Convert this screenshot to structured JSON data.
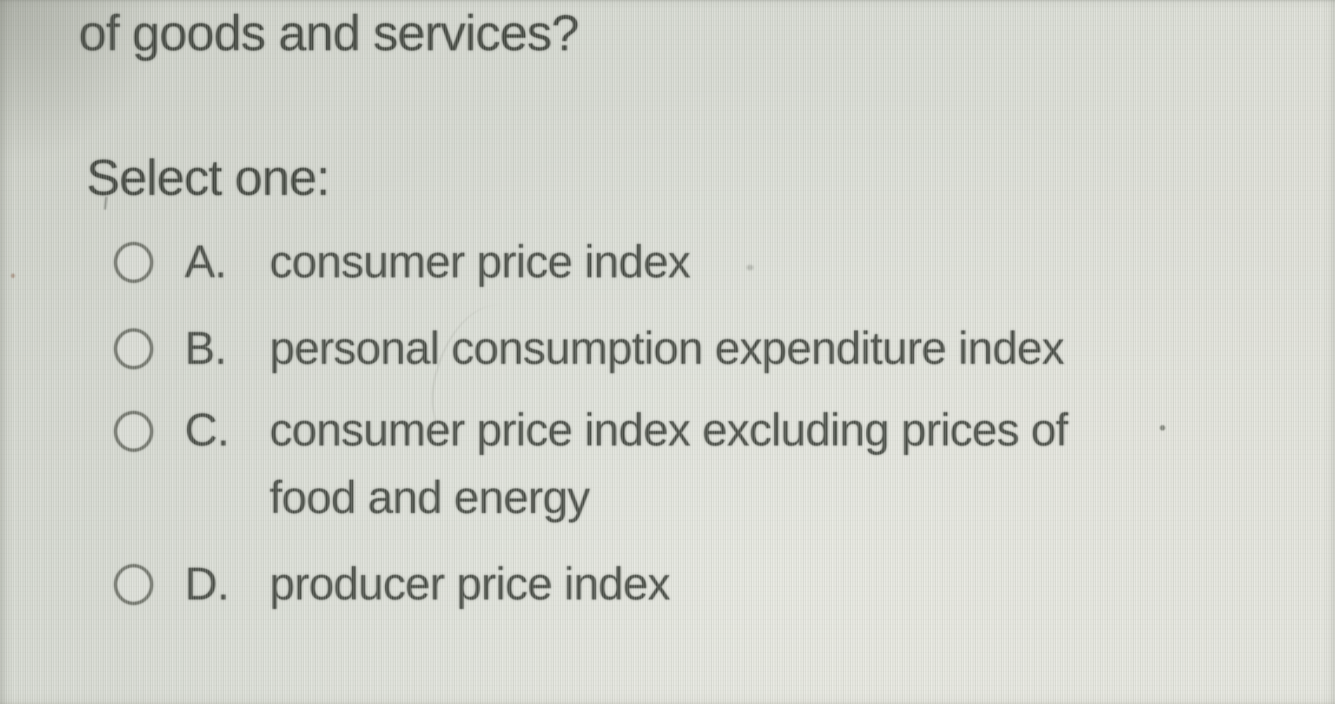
{
  "question": {
    "text": "of goods and services?",
    "select_prompt": "Select one:"
  },
  "options": [
    {
      "letter": "A.",
      "label": "consumer price index",
      "selected": false
    },
    {
      "letter": "B.",
      "label": "personal consumption expenditure index",
      "selected": false
    },
    {
      "letter": "C.",
      "label": "consumer price index excluding prices of food and energy",
      "selected": false
    },
    {
      "letter": "D.",
      "label": "producer price index",
      "selected": false
    }
  ],
  "colors": {
    "screen_bg": "#d7dad2",
    "text_heading": "#3e423b",
    "text_option": "#454942",
    "radio_ring": "#6f7269"
  }
}
